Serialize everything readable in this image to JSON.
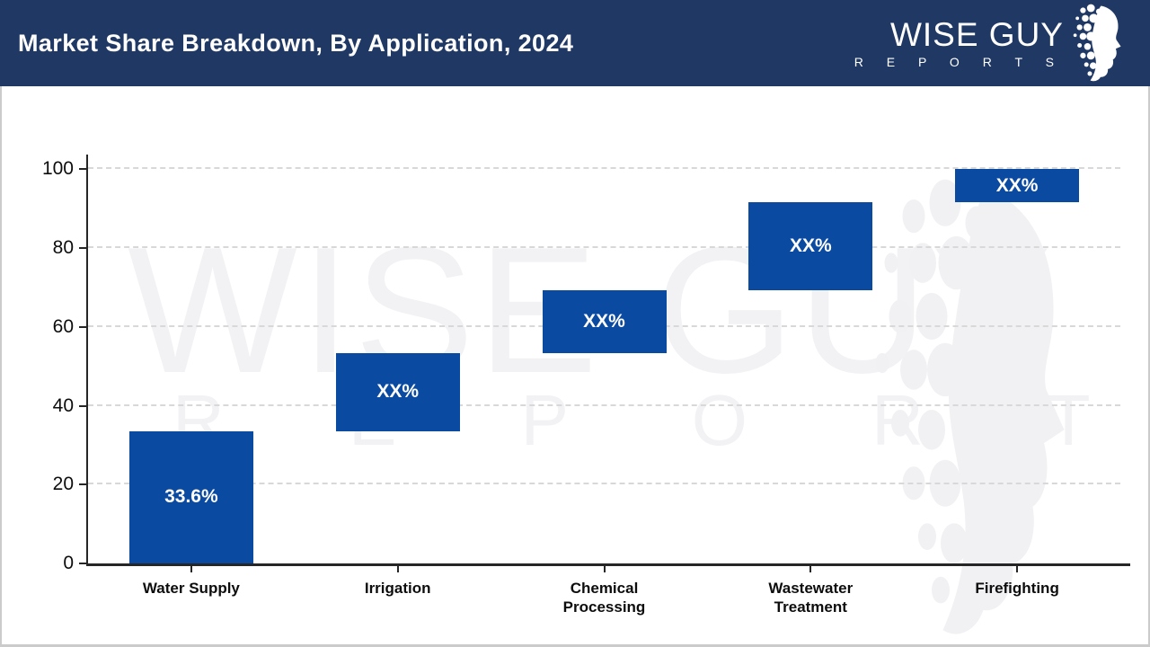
{
  "header": {
    "title": "Market Share Breakdown, By Application, 2024",
    "bg_color": "#203864",
    "logo": {
      "line1": "WISE GUY",
      "line2": "R E P O R T S"
    }
  },
  "watermark": {
    "line1": "WISE GUY",
    "line2": "R E P O R T S"
  },
  "chart_data": {
    "type": "bar",
    "subtype": "waterfall",
    "title": "Market Share Breakdown, By Application, 2024",
    "categories": [
      "Water Supply",
      "Irrigation",
      "Chemical Processing",
      "Wastewater Treatment",
      "Firefighting"
    ],
    "bars": [
      {
        "category": "Water Supply",
        "start": 0,
        "end": 33.6,
        "value_label": "33.6%"
      },
      {
        "category": "Irrigation",
        "start": 33.6,
        "end": 53.4,
        "value_label": "XX%"
      },
      {
        "category": "Chemical Processing",
        "start": 53.4,
        "end": 69.3,
        "value_label": "XX%"
      },
      {
        "category": "Wastewater Treatment",
        "start": 69.3,
        "end": 91.7,
        "value_label": "XX%"
      },
      {
        "category": "Firefighting",
        "start": 91.7,
        "end": 100,
        "value_label": "XX%"
      }
    ],
    "y_ticks": [
      0,
      20,
      40,
      60,
      80,
      100
    ],
    "ylim": [
      0,
      100
    ],
    "xlabel": "",
    "ylabel": "",
    "grid": "horizontal-dashed",
    "legend": "none",
    "bar_color": "#0b4aa1",
    "value_label_color": "#ffffff",
    "axis_color": "#262626"
  }
}
